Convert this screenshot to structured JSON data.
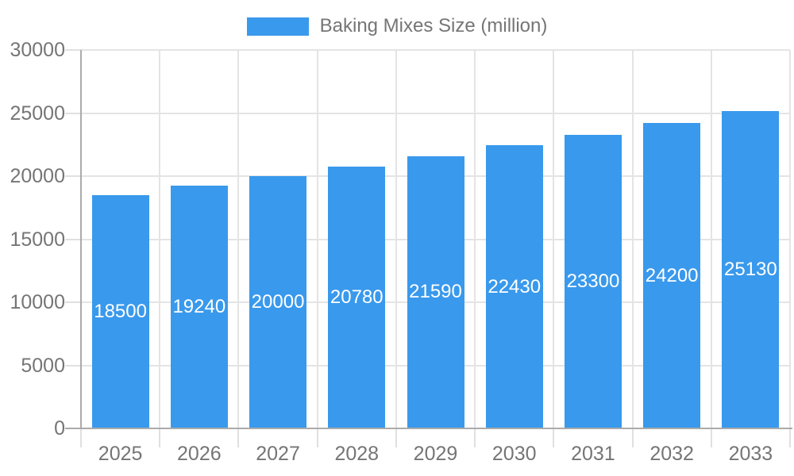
{
  "legend": {
    "label": "Baking Mixes Size (million)"
  },
  "chart_data": {
    "type": "bar",
    "title": "",
    "categories": [
      "2025",
      "2026",
      "2027",
      "2028",
      "2029",
      "2030",
      "2031",
      "2032",
      "2033"
    ],
    "series": [
      {
        "name": "Baking Mixes Size (million)",
        "values": [
          18500,
          19240,
          20000,
          20780,
          21590,
          22430,
          23300,
          24200,
          25130
        ]
      }
    ],
    "bar_labels": [
      "18500",
      "19240",
      "20000",
      "20780",
      "21590",
      "22430",
      "23300",
      "24200",
      "25130"
    ],
    "xlabel": "",
    "ylabel": "",
    "ylim": [
      0,
      30000
    ],
    "yticks": [
      0,
      5000,
      10000,
      15000,
      20000,
      25000,
      30000
    ],
    "ytick_labels": [
      "0",
      "5000",
      "10000",
      "15000",
      "20000",
      "25000",
      "30000"
    ],
    "grid": true,
    "legend_position": "top-center",
    "colors": {
      "bar": "#3999ec",
      "grid": "#e4e4e4",
      "tick": "#e0e0e0",
      "axis": "#ababab",
      "axis_text": "#757575",
      "bar_label_text": "#ffffff",
      "background": "#ffffff"
    }
  }
}
